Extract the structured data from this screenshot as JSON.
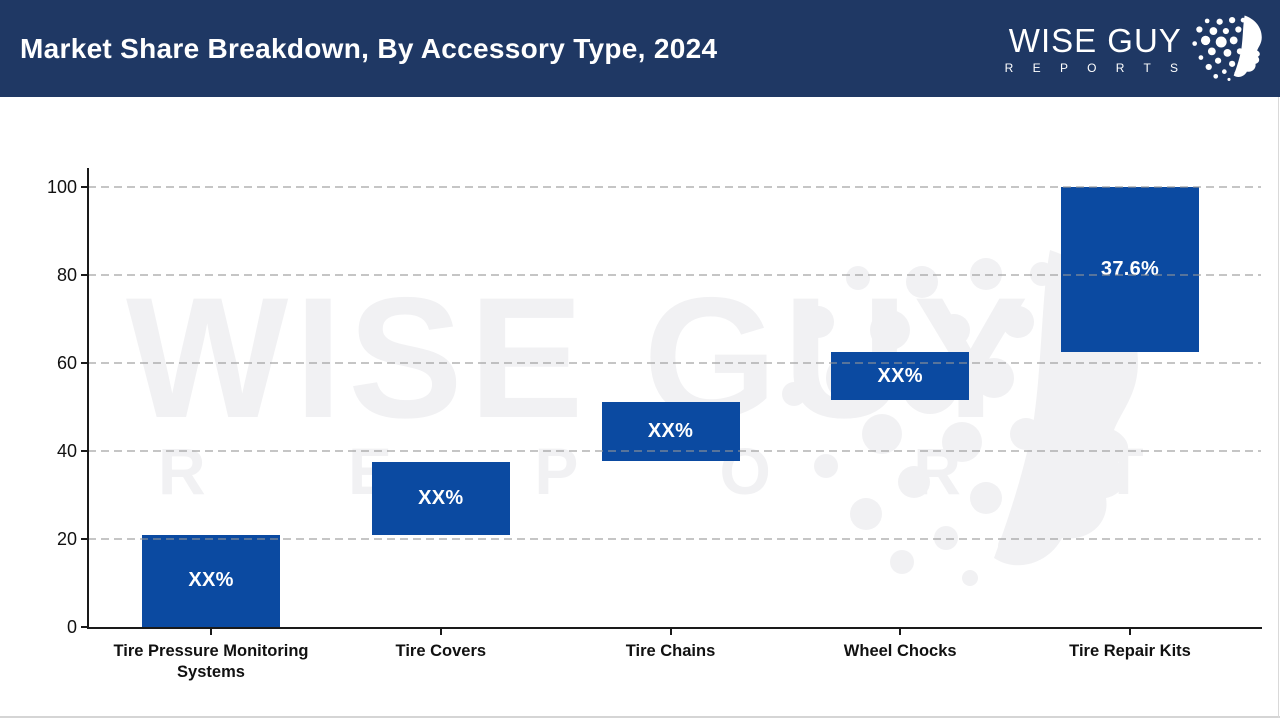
{
  "header": {
    "title": "Market Share Breakdown, By Accessory Type, 2024",
    "bg_color": "#1F3864",
    "logo": {
      "line1": "WISE GUY",
      "line2": "R E P O R T S"
    }
  },
  "watermark": {
    "line1": "WISE GUY",
    "line2": "R E P O R T S"
  },
  "chart_data": {
    "type": "bar",
    "subtype": "floating-waterfall",
    "title": "Market Share Breakdown, By Accessory Type, 2024",
    "categories": [
      "Tire Pressure Monitoring Systems",
      "Tire Covers",
      "Tire Chains",
      "Wheel Chocks",
      "Tire Repair Kits"
    ],
    "bars": [
      {
        "category": "Tire Pressure Monitoring Systems",
        "base": 0,
        "top": 21,
        "label": "XX%"
      },
      {
        "category": "Tire Covers",
        "base": 21,
        "top": 37.5,
        "label": "XX%"
      },
      {
        "category": "Tire Chains",
        "base": 37.8,
        "top": 51.2,
        "label": "XX%"
      },
      {
        "category": "Wheel Chocks",
        "base": 51.5,
        "top": 62.4,
        "label": "XX%"
      },
      {
        "category": "Tire Repair Kits",
        "base": 62.4,
        "top": 100,
        "label": "37.6%"
      }
    ],
    "xlabel": "",
    "ylabel": "",
    "ylim": [
      0,
      100
    ],
    "yticks": [
      0,
      20,
      40,
      60,
      80,
      100
    ],
    "grid": "horizontal-dashed-over-bars",
    "legend": "none",
    "bar_color": "#0B4AA1",
    "value_label_color": "#FFFFFF"
  }
}
